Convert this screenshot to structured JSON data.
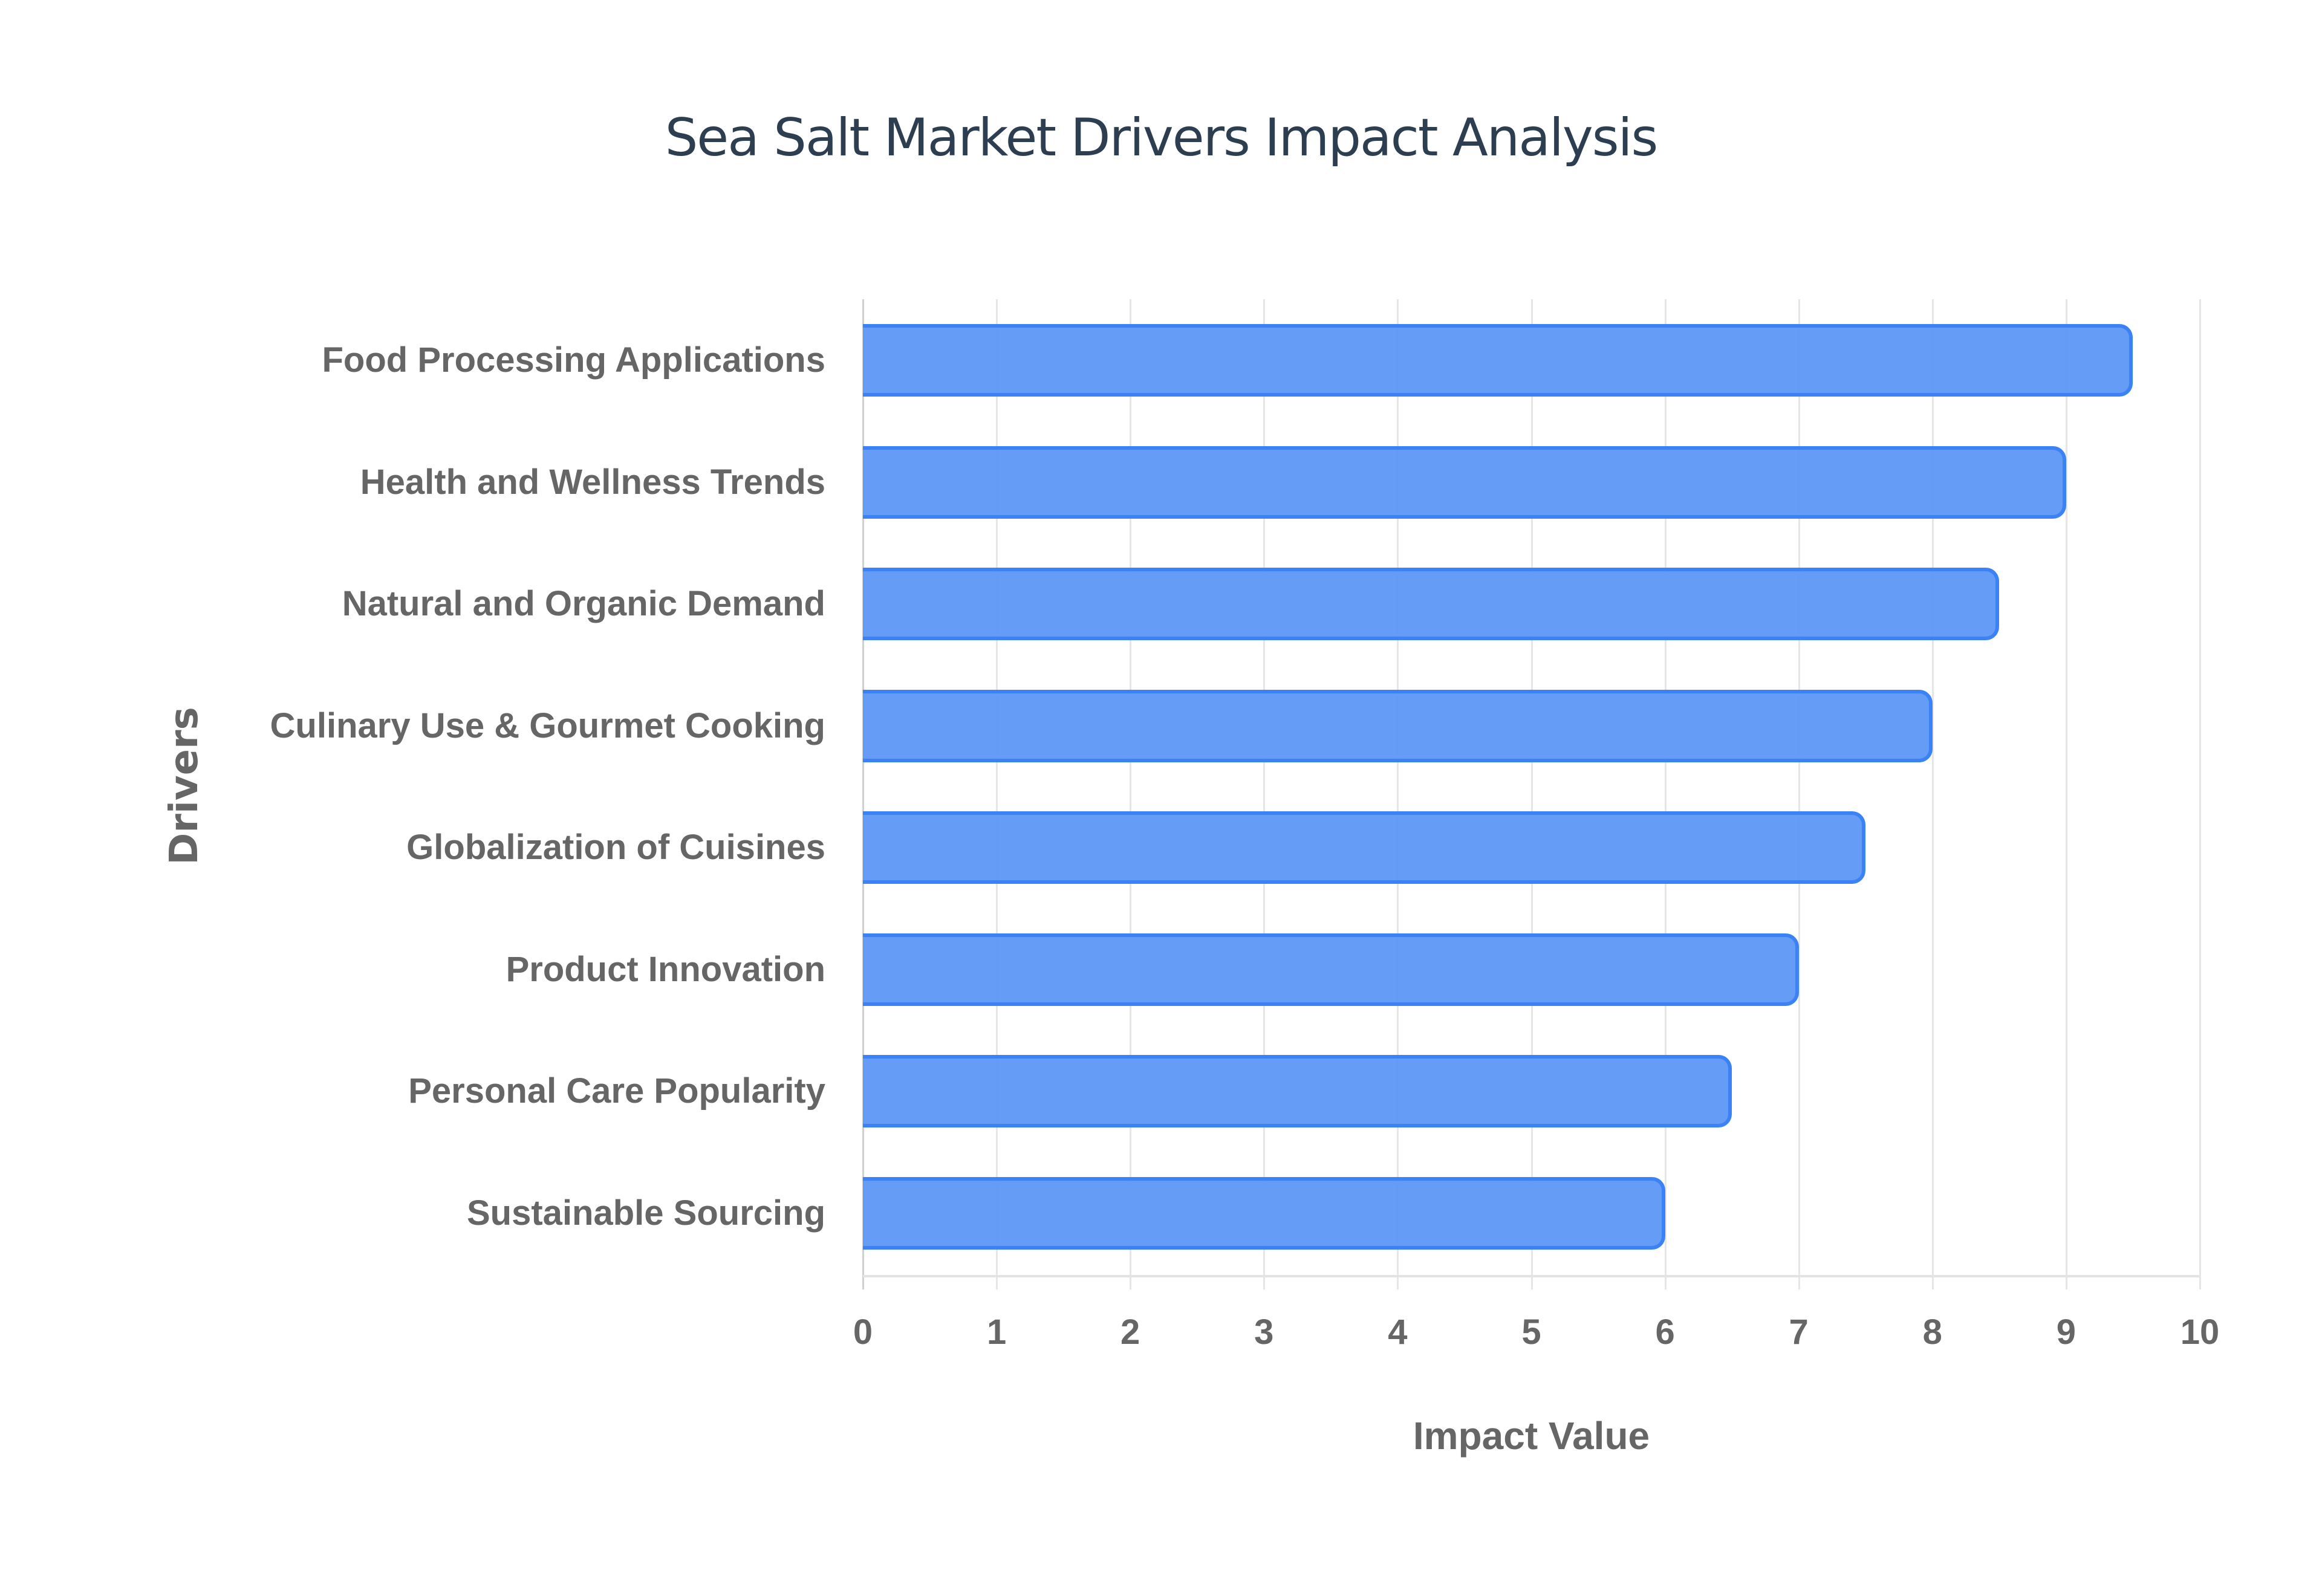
{
  "chart_data": {
    "type": "bar",
    "orientation": "horizontal",
    "title": "Sea Salt Market Drivers Impact Analysis",
    "xlabel": "Impact Value",
    "ylabel": "Drivers",
    "xlim": [
      0,
      10
    ],
    "x_ticks": [
      "0",
      "1",
      "2",
      "3",
      "4",
      "5",
      "6",
      "7",
      "8",
      "9",
      "10"
    ],
    "grid": true,
    "legend": null,
    "categories": [
      "Food Processing Applications",
      "Health and Wellness Trends",
      "Natural and Organic Demand",
      "Culinary Use & Gourmet Cooking",
      "Globalization of Cuisines",
      "Product Innovation",
      "Personal Care Popularity",
      "Sustainable Sourcing"
    ],
    "values": [
      9.5,
      9,
      8.5,
      8,
      7.5,
      7,
      6.5,
      6
    ],
    "colors": {
      "bar_fill": "#5f97f5",
      "bar_border": "#3b82f6",
      "title": "#2c3e50",
      "axis_text": "#666666",
      "grid": "#e6e6e6"
    }
  }
}
